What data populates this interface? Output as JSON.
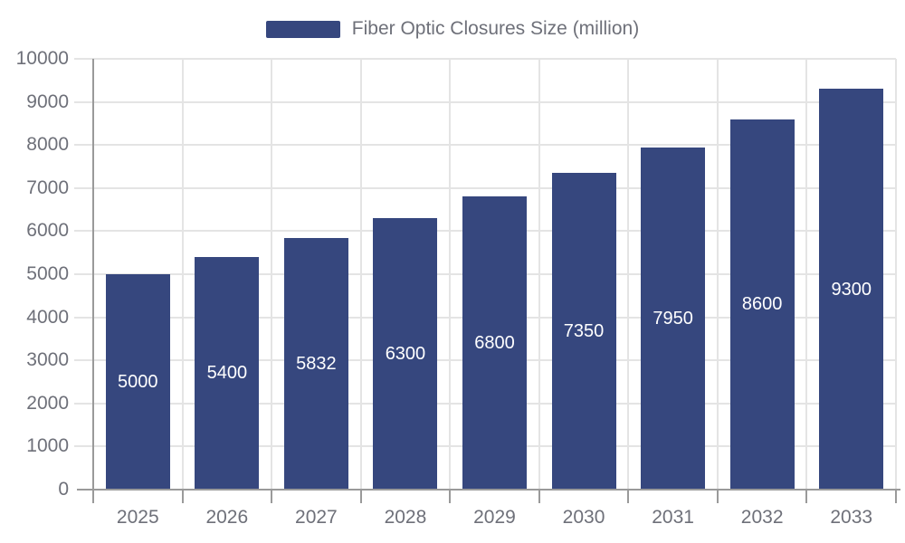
{
  "legend": {
    "label": "Fiber Optic Closures Size (million)"
  },
  "chart_data": {
    "type": "bar",
    "title": "",
    "categories": [
      "2025",
      "2026",
      "2027",
      "2028",
      "2029",
      "2030",
      "2031",
      "2032",
      "2033"
    ],
    "series": [
      {
        "name": "Fiber Optic Closures Size (million)",
        "values": [
          5000,
          5400,
          5832,
          6300,
          6800,
          7350,
          7950,
          8600,
          9300
        ]
      }
    ],
    "xlabel": "",
    "ylabel": "",
    "ylim": [
      0,
      10000
    ],
    "ytick_interval": 1000,
    "grid": true,
    "legend_position": "top-center",
    "value_labels": "inside-center"
  },
  "style": {
    "bar_color": "#36477E",
    "grid_color": "#E4E4E4",
    "axis_color": "#9A9A9A",
    "tick_label_color": "#6E7079",
    "value_label_color": "#FFFFFF",
    "background_color": "#FFFFFF"
  }
}
